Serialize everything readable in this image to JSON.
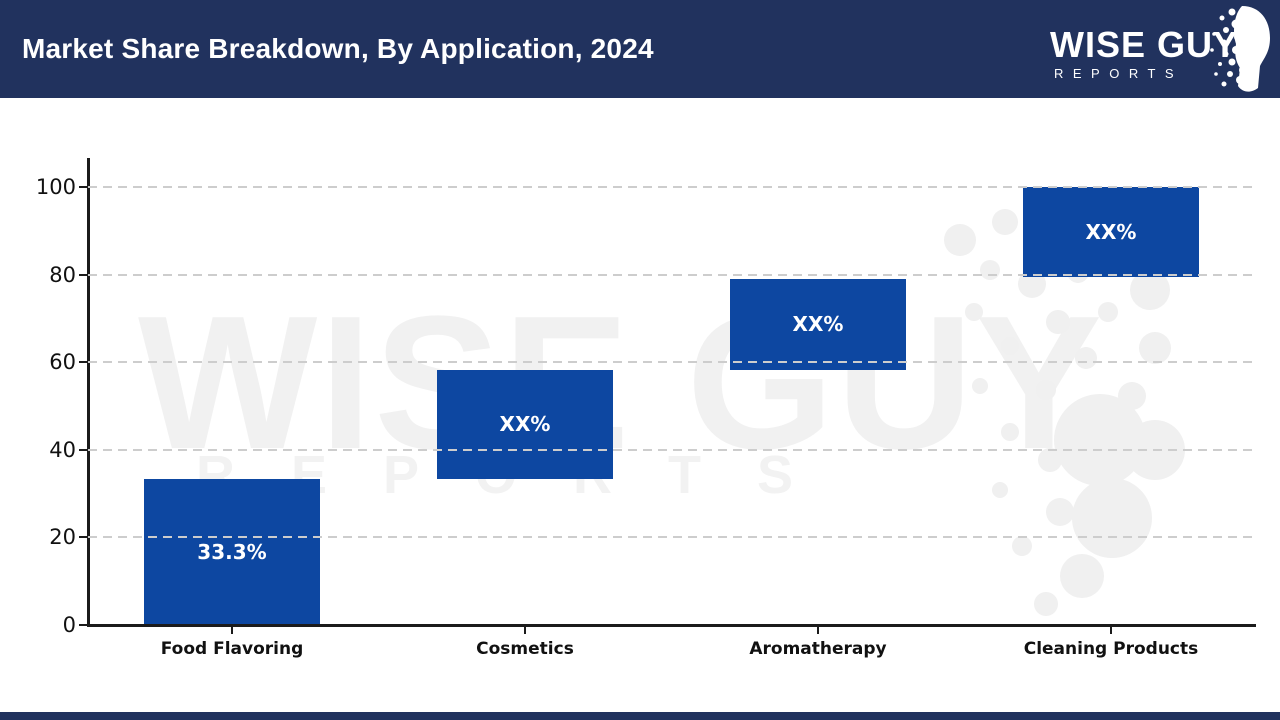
{
  "header": {
    "title": "Market Share Breakdown, By Application, 2024",
    "bg_color": "#21325e",
    "logo": {
      "line1": "WISE GUY",
      "line2": "REPORTS"
    }
  },
  "watermark": {
    "line1": "WISE GUY",
    "line2": "REPORTS"
  },
  "footer": {
    "bg_color": "#21325e"
  },
  "chart_data": {
    "type": "bar",
    "subtype": "waterfall",
    "title": "Market Share Breakdown, By Application, 2024",
    "categories": [
      "Food Flavoring",
      "Cosmetics",
      "Aromatherapy",
      "Cleaning Products"
    ],
    "series": [
      {
        "name": "Market Share",
        "segments": [
          {
            "category": "Food Flavoring",
            "start": 0,
            "end": 33.3,
            "label": "33.3%"
          },
          {
            "category": "Cosmetics",
            "start": 33.3,
            "end": 58.3,
            "label": "XX%"
          },
          {
            "category": "Aromatherapy",
            "start": 58.3,
            "end": 79.0,
            "label": "XX%"
          },
          {
            "category": "Cleaning Products",
            "start": 79.5,
            "end": 100,
            "label": "XX%"
          }
        ]
      }
    ],
    "yticks": [
      0,
      20,
      40,
      60,
      80,
      100
    ],
    "ylim": [
      0,
      106
    ],
    "grid": "horizontal-dashed",
    "legend": "none",
    "bar_color": "#0d47a1",
    "bar_label_color": "#ffffff",
    "axis_color": "#1b1b1b",
    "grid_color": "#cdcdcd"
  }
}
